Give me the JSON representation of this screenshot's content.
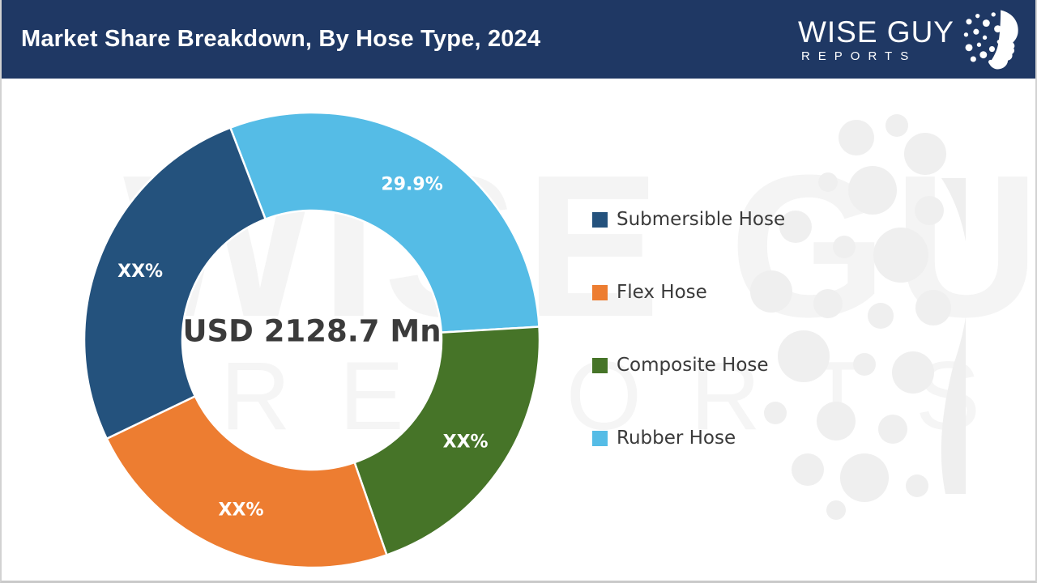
{
  "header": {
    "title": "Market Share Breakdown, By Hose Type, 2024",
    "bg_color": "#1f3864",
    "logo": {
      "line1": "WISE GUY",
      "line2": "REPORTS"
    }
  },
  "watermark": {
    "line1": "WISE GUY",
    "line2": "REPORTS"
  },
  "chart_data": {
    "type": "pie",
    "subtype": "donut",
    "title": "Market Share Breakdown, By Hose Type, 2024",
    "center_label": "USD 2128.7 Mn",
    "total_value_usd_mn": 2128.7,
    "start_angle_deg": -21,
    "legend_position": "right",
    "segments": [
      {
        "name": "Rubber Hose",
        "value": 29.9,
        "label": "29.9%",
        "color": "#55bce6"
      },
      {
        "name": "Composite Hose",
        "value": 20.6,
        "label": "XX%",
        "color": "#467428"
      },
      {
        "name": "Flex Hose",
        "value": 23.2,
        "label": "XX%",
        "color": "#ed7d31"
      },
      {
        "name": "Submersible Hose",
        "value": 26.3,
        "label": "XX%",
        "color": "#24527d"
      }
    ],
    "legend": [
      {
        "label": "Submersible Hose",
        "color": "#24527d"
      },
      {
        "label": "Flex Hose",
        "color": "#ed7d31"
      },
      {
        "label": "Composite Hose",
        "color": "#467428"
      },
      {
        "label": "Rubber Hose",
        "color": "#55bce6"
      }
    ]
  }
}
